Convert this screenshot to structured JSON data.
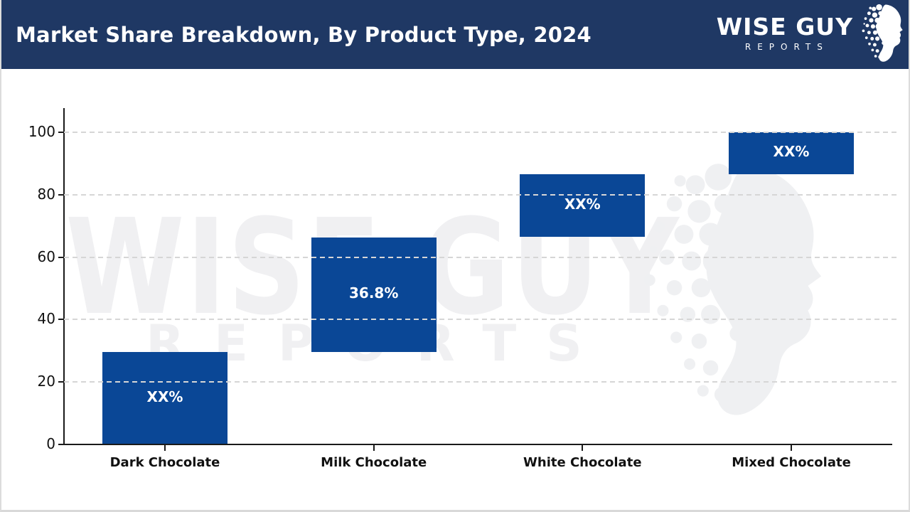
{
  "header": {
    "title": "Market Share Breakdown, By Product Type, 2024",
    "logo": {
      "line1": "WISE GUY",
      "line2": "REPORTS"
    }
  },
  "watermark": {
    "line1": "WISE GUY",
    "line2": "REPORTS"
  },
  "chart_data": {
    "type": "bar",
    "subtype": "waterfall",
    "title": "Market Share Breakdown, By Product Type, 2024",
    "xlabel": "",
    "ylabel": "",
    "categories": [
      "Dark Chocolate",
      "Milk Chocolate",
      "White Chocolate",
      "Mixed Chocolate"
    ],
    "bars": [
      {
        "category": "Dark Chocolate",
        "start": 0,
        "end": 29.6,
        "label": "XX%"
      },
      {
        "category": "Milk Chocolate",
        "start": 29.6,
        "end": 66.4,
        "label": "36.8%"
      },
      {
        "category": "White Chocolate",
        "start": 66.4,
        "end": 86.6,
        "label": "XX%"
      },
      {
        "category": "Mixed Chocolate",
        "start": 86.6,
        "end": 100,
        "label": "XX%"
      }
    ],
    "yticks": [
      0,
      20,
      40,
      60,
      80,
      100
    ],
    "ylim": [
      0,
      107
    ],
    "grid": "dashed-horizontal-above-bars",
    "legend": "none",
    "bar_color": "#0a4796",
    "bar_label_color": "#ffffff",
    "axis_color": "#1a1a1a",
    "grid_color": "#d6d6d6",
    "header_bg": "#1f3864",
    "watermark_color": "#f0f0f2"
  }
}
